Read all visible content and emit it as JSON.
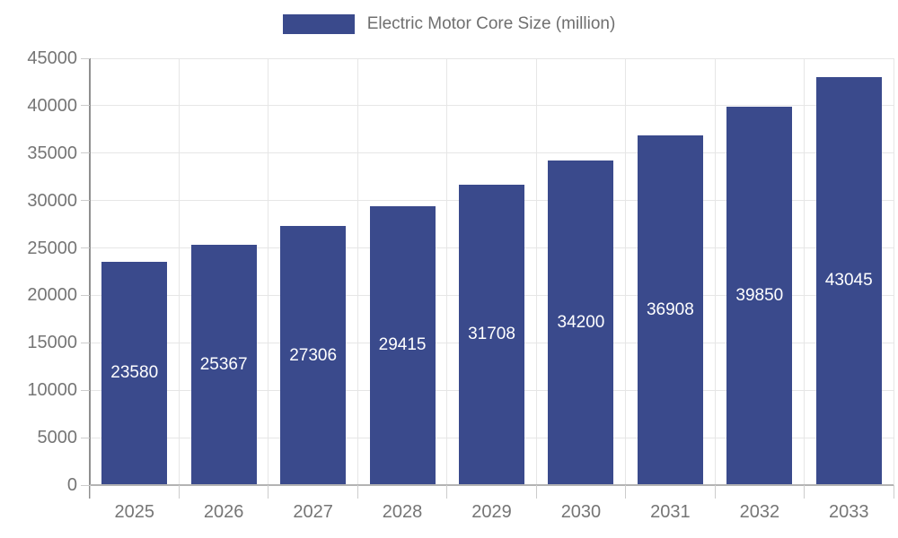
{
  "legend": {
    "label": "Electric Motor Core Size (million)"
  },
  "colors": {
    "bar": "#3A4A8C",
    "grid": "#E6E6E6",
    "y_axis_line": "#8F8F8F",
    "x_axis_line": "#B3B3B3",
    "tick": "#CCCCCC",
    "axis_label": "#757575",
    "legend_text": "#6F6F6F",
    "data_label": "#FFFFFF",
    "background": "#FFFFFF"
  },
  "chart_data": {
    "type": "bar",
    "title": "Electric Motor Core Size (million)",
    "series_name": "Electric Motor Core Size (million)",
    "categories": [
      "2025",
      "2026",
      "2027",
      "2028",
      "2029",
      "2030",
      "2031",
      "2032",
      "2033"
    ],
    "values": [
      23580,
      25367,
      27306,
      29415,
      31708,
      34200,
      36908,
      39850,
      43045
    ],
    "data_labels": [
      "23580",
      "25367",
      "27306",
      "29415",
      "31708",
      "34200",
      "36908",
      "39850",
      "43045"
    ],
    "xlabel": "",
    "ylabel": "",
    "ylim": [
      0,
      45000
    ],
    "ytick_step": 5000,
    "yticks": [
      0,
      5000,
      10000,
      15000,
      20000,
      25000,
      30000,
      35000,
      40000,
      45000
    ],
    "grid": true,
    "legend_position": "top",
    "data_label_position": "inside-center"
  }
}
